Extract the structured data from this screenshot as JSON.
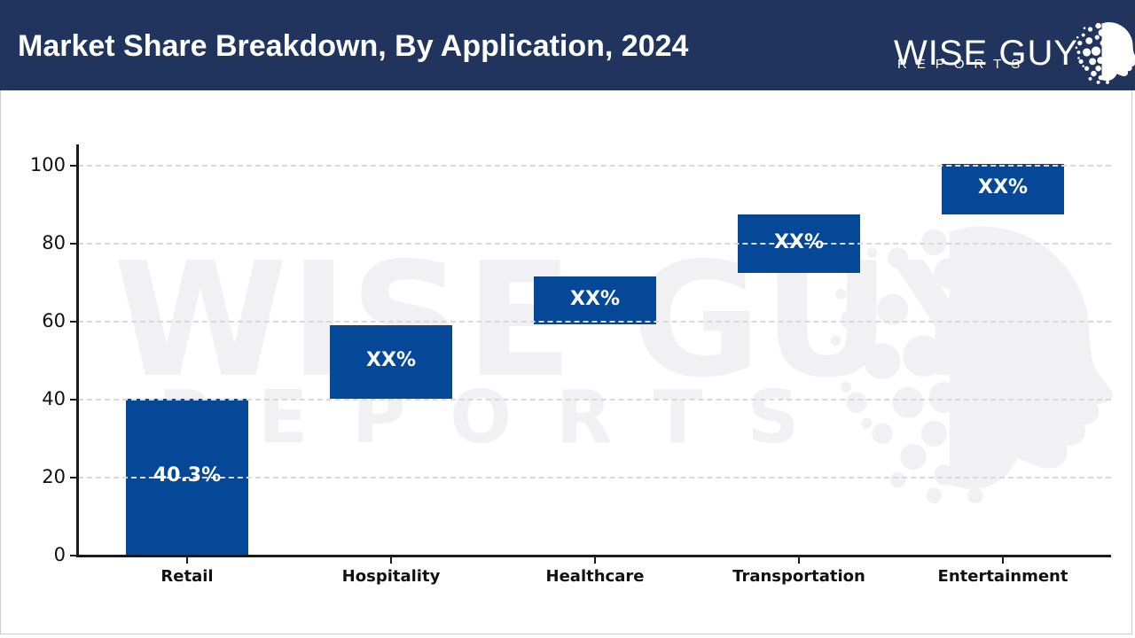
{
  "header": {
    "title": "Market Share Breakdown, By Application, 2024",
    "logo": {
      "line1": "WISE GUY",
      "line2": "REPORTS",
      "icon": "dotted-head-profile-icon"
    }
  },
  "watermark": {
    "line1": "WISE GUY",
    "line2": "REPORTS",
    "icon": "dotted-head-profile-icon"
  },
  "colors": {
    "header_bg": "#20345e",
    "title_text": "#ffffff",
    "bar": "#054898",
    "bar_label": "#ffffff",
    "grid": "#d9d9d9",
    "axis": "#1a1a1a",
    "tick_text": "#111111",
    "watermark": "#f1f1f4",
    "frame_border": "#cbcbcb"
  },
  "chart_data": {
    "type": "bar",
    "subtype": "waterfall-floating-bars",
    "title": "Market Share Breakdown, By Application, 2024",
    "xlabel": "",
    "ylabel": "",
    "categories": [
      "Retail",
      "Hospitality",
      "Healthcare",
      "Transportation",
      "Entertainment"
    ],
    "series": [
      {
        "name": "Market Share %",
        "segments": [
          {
            "category": "Retail",
            "start": 0,
            "end": 40.3,
            "label": "40.3%"
          },
          {
            "category": "Hospitality",
            "start": 40.3,
            "end": 59.2,
            "label": "XX%"
          },
          {
            "category": "Healthcare",
            "start": 59.4,
            "end": 71.7,
            "label": "XX%"
          },
          {
            "category": "Transportation",
            "start": 72.4,
            "end": 87.4,
            "label": "XX%"
          },
          {
            "category": "Entertainment",
            "start": 87.6,
            "end": 100.4,
            "label": "XX%"
          }
        ]
      }
    ],
    "ylim": [
      0,
      105.5
    ],
    "yticks": [
      0,
      20,
      40,
      60,
      80,
      100
    ],
    "grid": "horizontal-dashed, drawn above bars",
    "legend": "none"
  }
}
